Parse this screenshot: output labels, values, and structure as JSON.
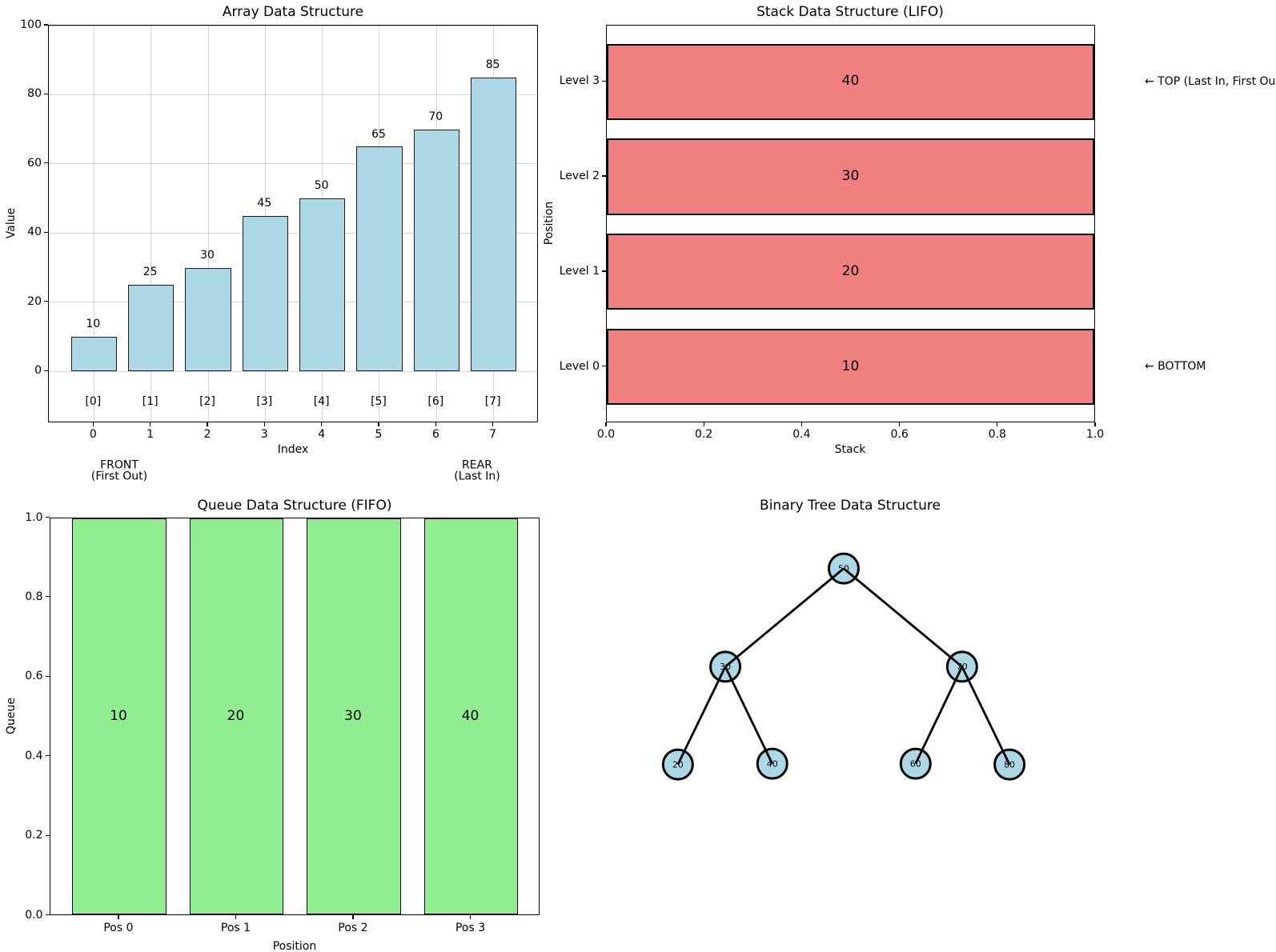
{
  "chart_data": [
    {
      "id": "array",
      "type": "bar",
      "title": "Array Data Structure",
      "xlabel": "Index",
      "ylabel": "Value",
      "categories": [
        "0",
        "1",
        "2",
        "3",
        "4",
        "5",
        "6",
        "7"
      ],
      "xtick_values": [
        0,
        1,
        2,
        3,
        4,
        5,
        6,
        7
      ],
      "index_labels": [
        "[0]",
        "[1]",
        "[2]",
        "[3]",
        "[4]",
        "[5]",
        "[6]",
        "[7]"
      ],
      "values": [
        10,
        25,
        30,
        45,
        50,
        65,
        70,
        85
      ],
      "yticks": [
        "0",
        "20",
        "40",
        "60",
        "80",
        "100"
      ],
      "ytick_values": [
        0,
        20,
        40,
        60,
        80,
        100
      ],
      "ylim": [
        -15,
        100
      ],
      "xlim": [
        -0.79,
        7.79
      ],
      "bar_width": 0.8,
      "grid": true,
      "bar_color": "#add8e6",
      "edge_color": "#1c1c1c",
      "front_label_line1": "FRONT",
      "front_label_line2": "(First Out)",
      "rear_label_line1": "REAR",
      "rear_label_line2": "(Last In)"
    },
    {
      "id": "stack",
      "type": "barh",
      "title": "Stack Data Structure (LIFO)",
      "xlabel": "Stack",
      "ylabel": "Position",
      "categories": [
        "Level 0",
        "Level 1",
        "Level 2",
        "Level 3"
      ],
      "values": [
        10,
        20,
        30,
        40
      ],
      "xticks": [
        "0.0",
        "0.2",
        "0.4",
        "0.6",
        "0.8",
        "1.0"
      ],
      "xtick_values": [
        0,
        0.2,
        0.4,
        0.6,
        0.8,
        1.0
      ],
      "xlim": [
        0,
        1
      ],
      "ylim": [
        -0.59,
        3.59
      ],
      "bar_height": 0.8,
      "bar_length": 1.0,
      "grid": false,
      "bar_color": "#f08080",
      "edge_color": "#000000",
      "top_annotation": "← TOP (Last In, First Out)",
      "bottom_annotation": "← BOTTOM"
    },
    {
      "id": "queue",
      "type": "bar",
      "title": "Queue Data Structure (FIFO)",
      "xlabel": "Position",
      "ylabel": "Queue",
      "categories": [
        "Pos 0",
        "Pos 1",
        "Pos 2",
        "Pos 3"
      ],
      "values": [
        10,
        20,
        30,
        40
      ],
      "yticks": [
        "0.0",
        "0.2",
        "0.4",
        "0.6",
        "0.8",
        "1.0"
      ],
      "ytick_values": [
        0,
        0.2,
        0.4,
        0.6,
        0.8,
        1.0
      ],
      "xlim": [
        -0.59,
        3.59
      ],
      "ylim": [
        0,
        1
      ],
      "bar_width": 0.8,
      "bar_height_value": 1.0,
      "grid": false,
      "bar_color": "#90ee90",
      "edge_color": "#000000"
    },
    {
      "id": "tree",
      "type": "tree",
      "title": "Binary Tree Data Structure",
      "node_color": "#add8e6",
      "node_edge_color": "#000000",
      "edge_color": "#000000",
      "nodes": [
        {
          "label": "50",
          "x": 0.486,
          "y": 0.128
        },
        {
          "label": "30",
          "x": 0.244,
          "y": 0.375
        },
        {
          "label": "70",
          "x": 0.728,
          "y": 0.375
        },
        {
          "label": "20",
          "x": 0.147,
          "y": 0.621
        },
        {
          "label": "40",
          "x": 0.34,
          "y": 0.619
        },
        {
          "label": "60",
          "x": 0.633,
          "y": 0.619
        },
        {
          "label": "80",
          "x": 0.825,
          "y": 0.621
        }
      ],
      "edges": [
        [
          0,
          1
        ],
        [
          0,
          2
        ],
        [
          1,
          3
        ],
        [
          1,
          4
        ],
        [
          2,
          5
        ],
        [
          2,
          6
        ]
      ]
    }
  ]
}
